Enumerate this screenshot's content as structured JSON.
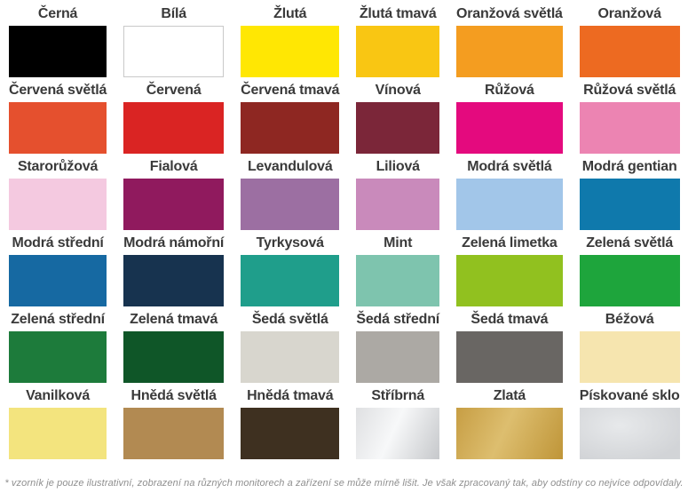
{
  "page": {
    "background": "#ffffff",
    "label_color": "#3a3a3a",
    "footnote": "* vzorník je pouze ilustrativní, zobrazení na různých monitorech a zařízení se může mírně lišit. Je však zpracovaný tak, aby odstíny co nejvíce odpovídaly."
  },
  "swatches": [
    {
      "label": "Černá",
      "color": "#000000"
    },
    {
      "label": "Bílá",
      "color": "#ffffff",
      "border": "#c9c9c9"
    },
    {
      "label": "Žlutá",
      "color": "#ffe703"
    },
    {
      "label": "Žlutá tmavá",
      "color": "#f9c613"
    },
    {
      "label": "Oranžová světlá",
      "color": "#f49d20"
    },
    {
      "label": "Oranžová",
      "color": "#ed6a21"
    },
    {
      "label": "Červená světlá",
      "color": "#e5502e"
    },
    {
      "label": "Červená",
      "color": "#da2423"
    },
    {
      "label": "Červená tmavá",
      "color": "#8e2722"
    },
    {
      "label": "Vínová",
      "color": "#7b2639"
    },
    {
      "label": "Růžová",
      "color": "#e40a7e"
    },
    {
      "label": "Růžová světlá",
      "color": "#ec84b2"
    },
    {
      "label": "Starorůžová",
      "color": "#f4c9e0"
    },
    {
      "label": "Fialová",
      "color": "#901a5e"
    },
    {
      "label": "Levandulová",
      "color": "#9c6fa2"
    },
    {
      "label": "Liliová",
      "color": "#c98abb"
    },
    {
      "label": "Modrá světlá",
      "color": "#a2c6e9"
    },
    {
      "label": "Modrá gentian",
      "color": "#0f79ac"
    },
    {
      "label": "Modrá střední",
      "color": "#1669a2"
    },
    {
      "label": "Modrá námořní",
      "color": "#17334f"
    },
    {
      "label": "Tyrkysová",
      "color": "#1f9e8b"
    },
    {
      "label": "Mint",
      "color": "#7ec4ae"
    },
    {
      "label": "Zelená limetka",
      "color": "#91c11f"
    },
    {
      "label": "Zelená světlá",
      "color": "#1ea53c"
    },
    {
      "label": "Zelená střední",
      "color": "#1d7b3b"
    },
    {
      "label": "Zelená tmavá",
      "color": "#0f5628"
    },
    {
      "label": "Šedá světlá",
      "color": "#d8d6ce"
    },
    {
      "label": "Šedá střední",
      "color": "#aca9a4"
    },
    {
      "label": "Šedá tmavá",
      "color": "#696663"
    },
    {
      "label": "Béžová",
      "color": "#f6e5af"
    },
    {
      "label": "Vanilková",
      "color": "#f3e47e"
    },
    {
      "label": "Hnědá světlá",
      "color": "#b28a52"
    },
    {
      "label": "Hnědá tmavá",
      "color": "#3e3020"
    },
    {
      "label": "Stříbrná",
      "gradient": {
        "type": "linear",
        "angle": 115,
        "stops": [
          "#dfe0e2",
          "#f7f8f9 45%",
          "#c6c8cb"
        ]
      }
    },
    {
      "label": "Zlatá",
      "gradient": {
        "type": "linear",
        "angle": 115,
        "stops": [
          "#c79e44",
          "#ddbe6f 45%",
          "#bf9538"
        ]
      }
    },
    {
      "label": "Pískované sklo",
      "gradient": {
        "type": "radial",
        "at": "40% 35%",
        "stops": [
          "#e7e9eb",
          "#d2d4d7 80%"
        ]
      }
    }
  ]
}
